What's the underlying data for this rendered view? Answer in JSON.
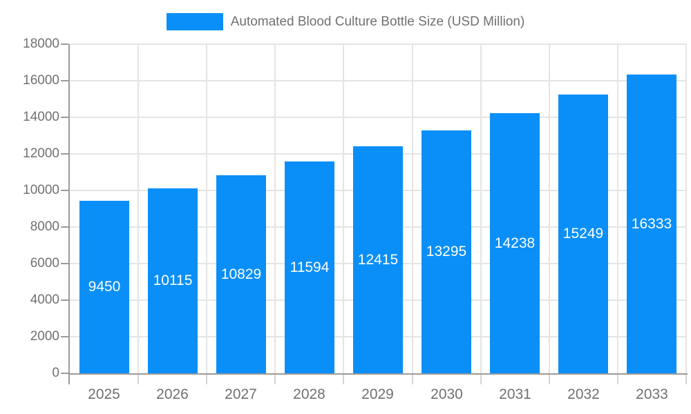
{
  "chart_data": {
    "type": "bar",
    "title": "Automated Blood Culture Bottle Size (USD Million)",
    "categories": [
      "2025",
      "2026",
      "2027",
      "2028",
      "2029",
      "2030",
      "2031",
      "2032",
      "2033"
    ],
    "values": [
      9450,
      10115,
      10829,
      11594,
      12415,
      13295,
      14238,
      15249,
      16333
    ],
    "xlabel": "",
    "ylabel": "",
    "ylim": [
      0,
      18000
    ],
    "yticks": [
      0,
      2000,
      4000,
      6000,
      8000,
      10000,
      12000,
      14000,
      16000,
      18000
    ],
    "legend": [
      "Automated Blood Culture Bottle Size (USD Million)"
    ],
    "legend_position": "top",
    "grid": true,
    "value_label_position": "inside-center",
    "colors": {
      "bar": "#0a8ff8",
      "axis": "#9a9a9a",
      "grid": "#e4e4e4",
      "minor_tick": "#d4d4d4",
      "tick_label": "#707070",
      "value_label": "#ffffff",
      "background": "#ffffff"
    }
  }
}
